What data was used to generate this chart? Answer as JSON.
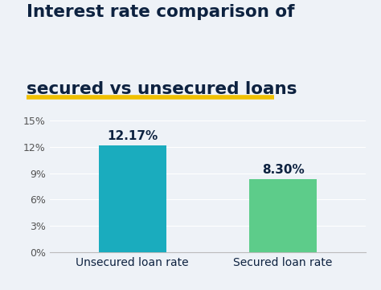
{
  "title_line1": "Interest rate comparison of",
  "title_line2": "secured vs unsecured loans",
  "categories": [
    "Unsecured loan rate",
    "Secured loan rate"
  ],
  "values": [
    12.17,
    8.3
  ],
  "bar_colors": [
    "#1aacbe",
    "#5dcc8a"
  ],
  "value_labels": [
    "12.17%",
    "8.30%"
  ],
  "yticks": [
    0,
    3,
    6,
    9,
    12,
    15
  ],
  "ytick_labels": [
    "0%",
    "3%",
    "6%",
    "9%",
    "12%",
    "15%"
  ],
  "ylim": [
    0,
    16.5
  ],
  "background_color": "#eef2f7",
  "title_color": "#0d2240",
  "underline_color": "#f0c000",
  "bar_label_color": "#0d2240",
  "tick_label_color": "#555555",
  "x_label_color": "#0d2240",
  "title_fontsize": 15.5,
  "bar_label_fontsize": 11,
  "tick_fontsize": 9,
  "x_label_fontsize": 10,
  "underline_thickness": 4
}
